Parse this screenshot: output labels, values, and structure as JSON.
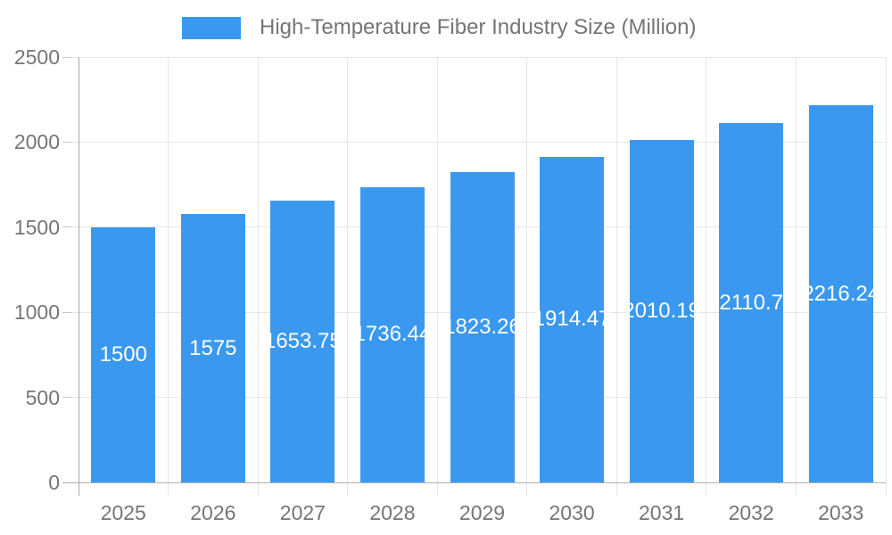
{
  "legend": {
    "label": "High-Temperature Fiber Industry Size (Million)",
    "position": "top"
  },
  "chart_data": {
    "type": "bar",
    "title": "High-Temperature Fiber Industry Size (Million)",
    "categories": [
      "2025",
      "2026",
      "2027",
      "2028",
      "2029",
      "2030",
      "2031",
      "2032",
      "2033"
    ],
    "series": [
      {
        "name": "High-Temperature Fiber Industry Size (Million)",
        "values": [
          1500,
          1575,
          1653.75,
          1736.44,
          1823.26,
          1914.47,
          2010.19,
          2110.7,
          2216.24
        ]
      }
    ],
    "value_labels": [
      "1500",
      "1575",
      "1653.75",
      "1736.44",
      "1823.26",
      "1914.47",
      "2010.19",
      "2110.7",
      "2216.24"
    ],
    "xlabel": "",
    "ylabel": "",
    "ylim": [
      0,
      2500
    ],
    "yticks": [
      0,
      500,
      1000,
      1500,
      2000,
      2500
    ],
    "grid": true,
    "legend_position": "top",
    "colors": {
      "bar": "#3a99ee",
      "bar_label_text": "#ffffff",
      "axis_text": "#757575",
      "gridline": "#e6e6e6",
      "axis_line": "#a5a5a5",
      "baseline": "#b0b0b0",
      "tick": "#c4c4c4",
      "background": "#ffffff"
    }
  }
}
